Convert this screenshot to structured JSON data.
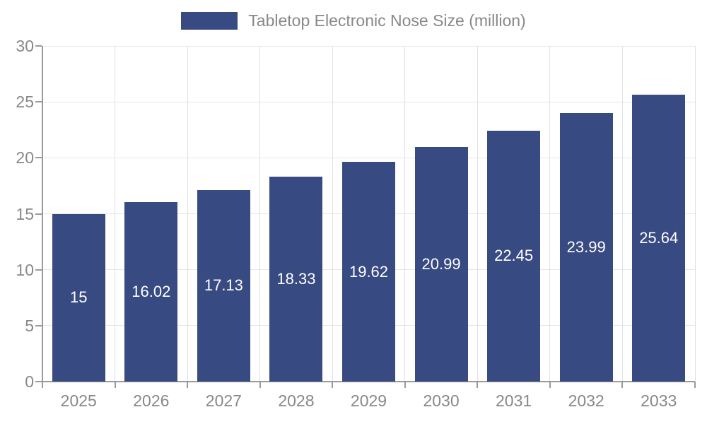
{
  "legend": {
    "label": "Tabletop Electronic Nose Size (million)"
  },
  "chart_data": {
    "type": "bar",
    "title": "Tabletop Electronic Nose Size (million)",
    "categories": [
      "2025",
      "2026",
      "2027",
      "2028",
      "2029",
      "2030",
      "2031",
      "2032",
      "2033"
    ],
    "values": [
      15,
      16.02,
      17.13,
      18.33,
      19.62,
      20.99,
      22.45,
      23.99,
      25.64
    ],
    "value_labels": [
      "15",
      "16.02",
      "17.13",
      "18.33",
      "19.62",
      "20.99",
      "22.45",
      "23.99",
      "25.64"
    ],
    "xlabel": "",
    "ylabel": "",
    "ylim": [
      0,
      30
    ],
    "yticks": [
      0,
      5,
      10,
      15,
      20,
      25,
      30
    ],
    "grid": true,
    "legend_position": "top-center",
    "colors": {
      "bar": "#384a82",
      "value_label": "#ffffff",
      "axis_text": "#888888",
      "axis_line": "#9a9a9a",
      "gridline_h": "#e6e6e6",
      "gridline_v": "#e0e0e6",
      "background": "#ffffff"
    }
  }
}
